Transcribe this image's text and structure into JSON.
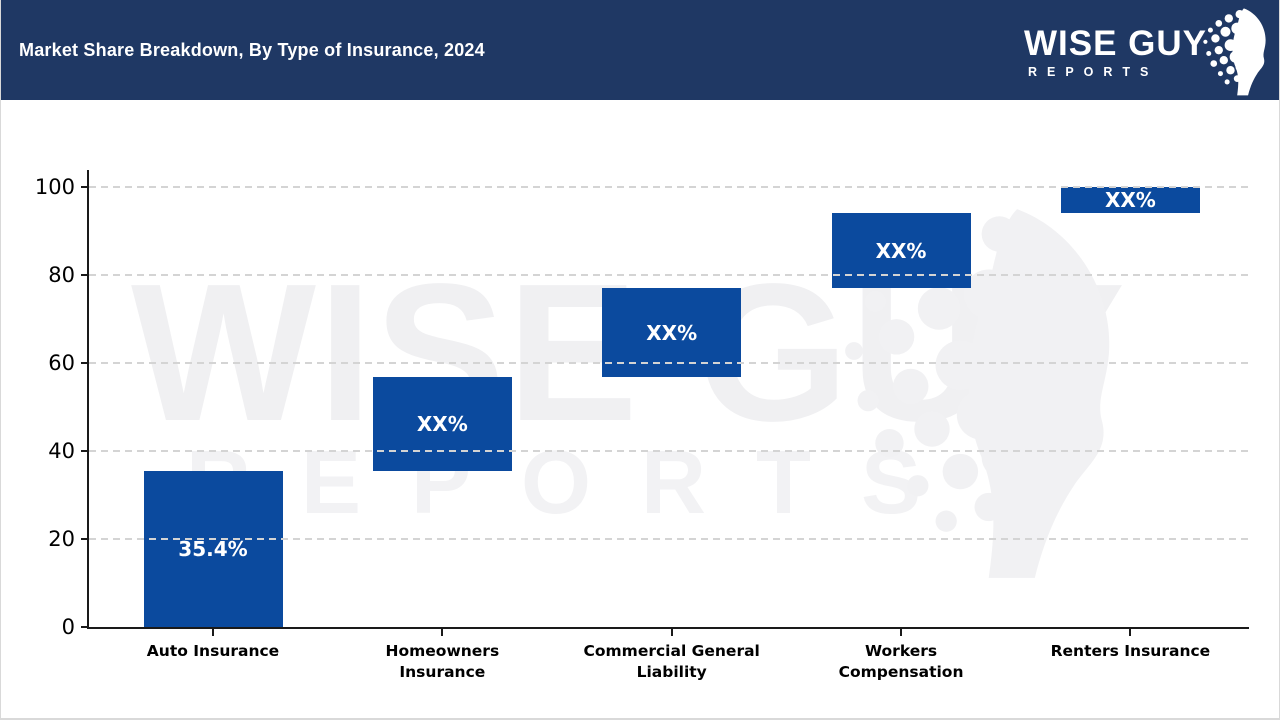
{
  "header": {
    "title": "Market Share Breakdown, By Type of Insurance, 2024",
    "brand_name": "WISE GUY",
    "brand_subtitle": "REPORTS"
  },
  "watermark": {
    "line1": "WISE GUY",
    "line2": "REPORTS"
  },
  "icons": {
    "brand_head": "dotted-head-profile-icon"
  },
  "colors": {
    "header_bg": "#1F3864",
    "bar": "#0B4A9E",
    "bar_label": "#FFFFFF",
    "grid": "#D4D4D4",
    "axis": "#1A1A1A",
    "watermark": "#F0F0F2",
    "page_border": "#D9D9D9"
  },
  "chart_data": {
    "type": "bar",
    "subtype": "waterfall",
    "title": "Market Share Breakdown, By Type of Insurance, 2024",
    "xlabel": "",
    "ylabel": "",
    "ylim": [
      0,
      104
    ],
    "yticks": [
      0,
      20,
      40,
      60,
      80,
      100
    ],
    "grid": "horizontal-dashed",
    "legend": "none",
    "categories": [
      "Auto Insurance",
      "Homeowners Insurance",
      "Commercial General Liability",
      "Workers Compensation",
      "Renters Insurance"
    ],
    "category_label_lines": [
      [
        "Auto Insurance"
      ],
      [
        "Homeowners",
        "Insurance"
      ],
      [
        "Commercial General",
        "Liability"
      ],
      [
        "Workers",
        "Compensation"
      ],
      [
        "Renters Insurance"
      ]
    ],
    "segments": [
      {
        "category": "Auto Insurance",
        "start": 0,
        "end": 35.4,
        "label": "35.4%"
      },
      {
        "category": "Homeowners Insurance",
        "start": 35.4,
        "end": 56.8,
        "label": "XX%"
      },
      {
        "category": "Commercial General Liability",
        "start": 56.8,
        "end": 77.0,
        "label": "XX%"
      },
      {
        "category": "Workers Compensation",
        "start": 77.0,
        "end": 94.1,
        "label": "XX%"
      },
      {
        "category": "Renters Insurance",
        "start": 94.1,
        "end": 100,
        "label": "XX%"
      }
    ],
    "bar_color": "#0B4A9E",
    "value_label_color": "#FFFFFF"
  }
}
